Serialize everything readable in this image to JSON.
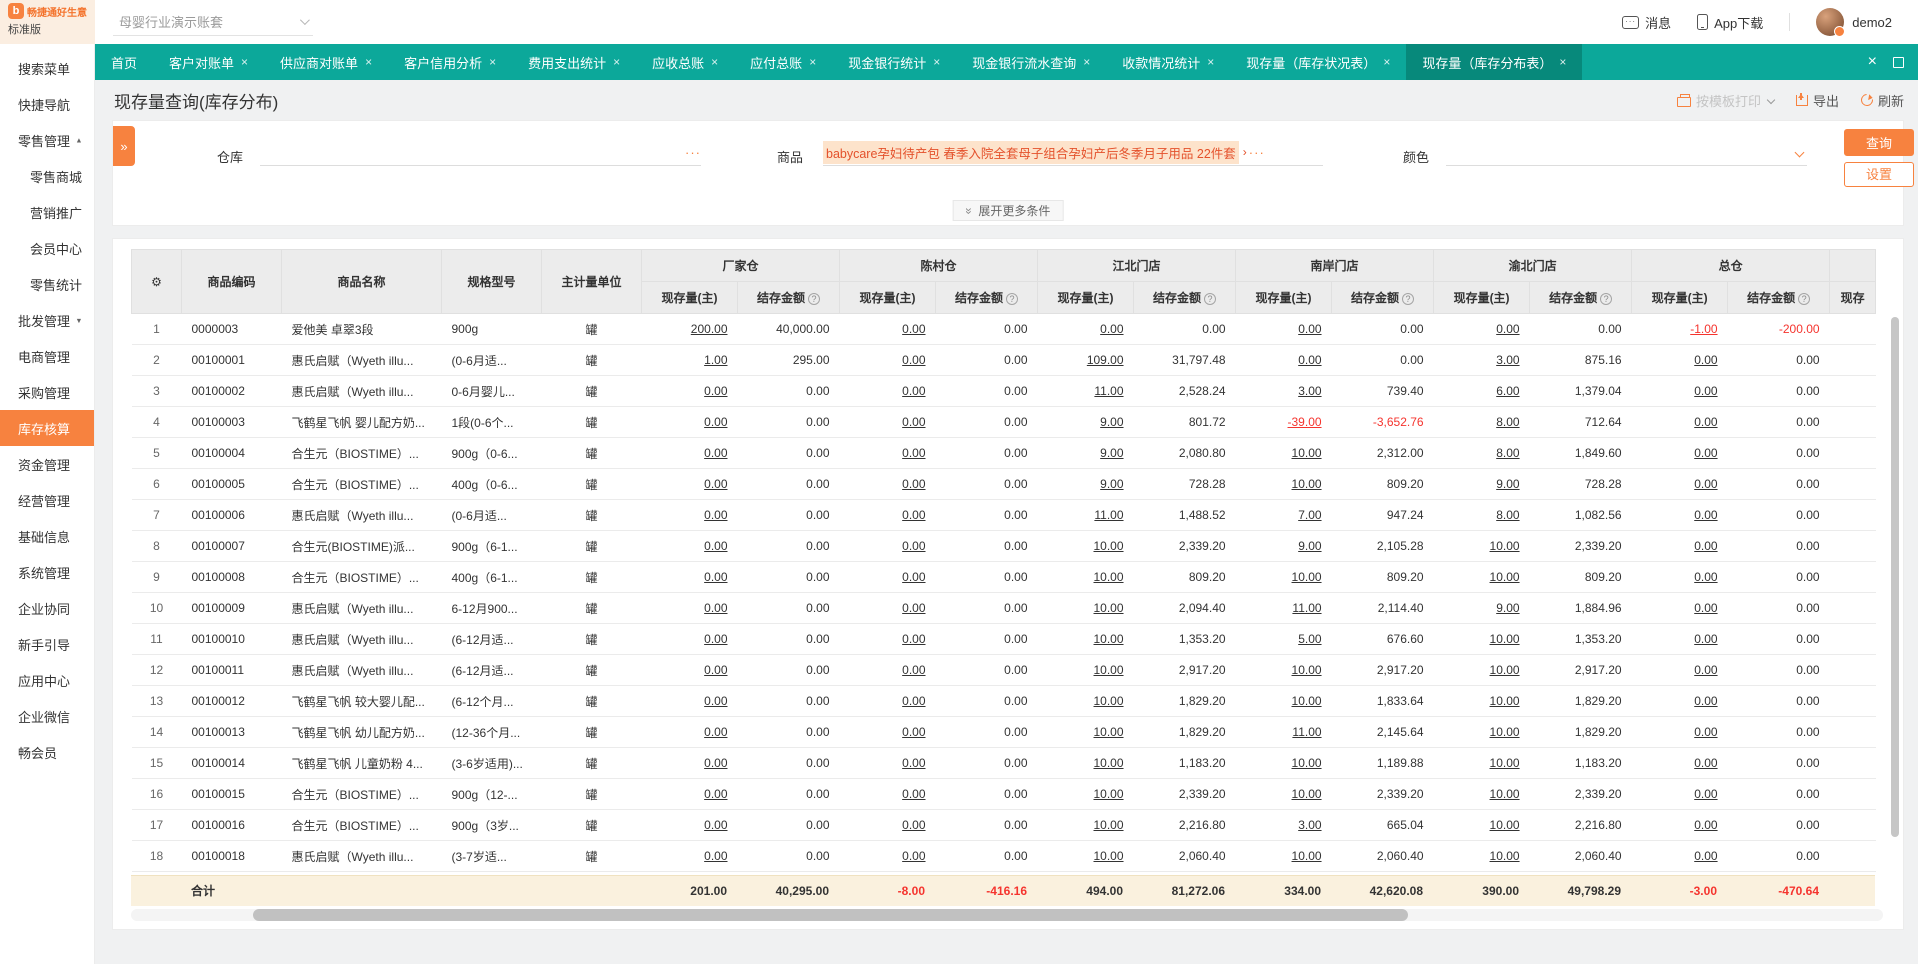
{
  "colors": {
    "accent": "#f7823f",
    "teal": "#0ca89a",
    "teal-active": "#07897b",
    "negative": "#f5342e",
    "totals-bg": "#faf1de",
    "product-bg": "#fde3cb",
    "product-text": "#e4512b"
  },
  "topbar": {
    "logo_title": "畅捷通好生意",
    "logo_subtitle": "标准版",
    "account_select": "母婴行业演示账套",
    "messages_label": "消息",
    "app_download_label": "App下载",
    "username": "demo2"
  },
  "tabs": [
    {
      "label": "首页",
      "closable": false,
      "active": false
    },
    {
      "label": "客户对账单",
      "closable": true,
      "active": false
    },
    {
      "label": "供应商对账单",
      "closable": true,
      "active": false
    },
    {
      "label": "客户信用分析",
      "closable": true,
      "active": false
    },
    {
      "label": "费用支出统计",
      "closable": true,
      "active": false
    },
    {
      "label": "应收总账",
      "closable": true,
      "active": false
    },
    {
      "label": "应付总账",
      "closable": true,
      "active": false
    },
    {
      "label": "现金银行统计",
      "closable": true,
      "active": false
    },
    {
      "label": "现金银行流水查询",
      "closable": true,
      "active": false
    },
    {
      "label": "收款情况统计",
      "closable": true,
      "active": false
    },
    {
      "label": "现存量（库存状况表）",
      "closable": true,
      "active": false
    },
    {
      "label": "现存量（库存分布表）",
      "closable": true,
      "active": true
    }
  ],
  "sidebar": {
    "items": [
      {
        "label": "搜索菜单"
      },
      {
        "label": "快捷导航"
      },
      {
        "label": "零售管理",
        "arrow": "up"
      },
      {
        "label": "零售商城",
        "child": true
      },
      {
        "label": "营销推广",
        "child": true
      },
      {
        "label": "会员中心",
        "child": true
      },
      {
        "label": "零售统计",
        "child": true
      },
      {
        "label": "批发管理",
        "arrow": "down"
      },
      {
        "label": "电商管理"
      },
      {
        "label": "采购管理"
      },
      {
        "label": "库存核算",
        "active": true
      },
      {
        "label": "资金管理"
      },
      {
        "label": "经营管理"
      },
      {
        "label": "基础信息"
      },
      {
        "label": "系统管理"
      },
      {
        "label": "企业协同"
      },
      {
        "label": "新手引导"
      },
      {
        "label": "应用中心"
      },
      {
        "label": "企业微信"
      },
      {
        "label": "畅会员"
      }
    ]
  },
  "page": {
    "title": "现存量查询(库存分布)",
    "print_label": "按模板打印",
    "export_label": "导出",
    "refresh_label": "刷新"
  },
  "filters": {
    "warehouse_label": "仓库",
    "product_label": "商品",
    "product_value": "babycare孕妇待产包 春季入院全套母子组合孕妇产后冬季月子用品 22件套",
    "product_more": "···",
    "warehouse_more": "···",
    "color_label": "颜色",
    "search_button": "查询",
    "settings_button": "设置",
    "expand_more": "展开更多条件"
  },
  "table": {
    "fixed_headers": [
      "商品编码",
      "商品名称",
      "规格型号",
      "主计量单位"
    ],
    "groups": [
      "厂家仓",
      "陈村仓",
      "江北门店",
      "南岸门店",
      "渝北门店",
      "总仓"
    ],
    "qty_header": "现存量(主)",
    "amount_header": "结存金额",
    "partial_header": "现存",
    "rows": [
      {
        "no": "1",
        "code": "0000003",
        "name": "爱他美 卓翠3段",
        "spec": "900g",
        "unit": "罐",
        "values": [
          "200.00",
          "40,000.00",
          "0.00",
          "0.00",
          "0.00",
          "0.00",
          "0.00",
          "0.00",
          "0.00",
          "0.00",
          "-1.00",
          "-200.00"
        ]
      },
      {
        "no": "2",
        "code": "00100001",
        "name": "惠氏启赋（Wyeth illu...",
        "spec": "(0-6月适...",
        "unit": "罐",
        "values": [
          "1.00",
          "295.00",
          "0.00",
          "0.00",
          "109.00",
          "31,797.48",
          "0.00",
          "0.00",
          "3.00",
          "875.16",
          "0.00",
          "0.00"
        ]
      },
      {
        "no": "3",
        "code": "00100002",
        "name": "惠氏启赋（Wyeth illu...",
        "spec": "0-6月婴儿...",
        "unit": "罐",
        "values": [
          "0.00",
          "0.00",
          "0.00",
          "0.00",
          "11.00",
          "2,528.24",
          "3.00",
          "739.40",
          "6.00",
          "1,379.04",
          "0.00",
          "0.00"
        ]
      },
      {
        "no": "4",
        "code": "00100003",
        "name": "飞鹤星飞帆 婴儿配方奶...",
        "spec": "1段(0-6个...",
        "unit": "罐",
        "values": [
          "0.00",
          "0.00",
          "0.00",
          "0.00",
          "9.00",
          "801.72",
          "-39.00",
          "-3,652.76",
          "8.00",
          "712.64",
          "0.00",
          "0.00"
        ]
      },
      {
        "no": "5",
        "code": "00100004",
        "name": "合生元（BIOSTIME）...",
        "spec": "900g（0-6...",
        "unit": "罐",
        "values": [
          "0.00",
          "0.00",
          "0.00",
          "0.00",
          "9.00",
          "2,080.80",
          "10.00",
          "2,312.00",
          "8.00",
          "1,849.60",
          "0.00",
          "0.00"
        ]
      },
      {
        "no": "6",
        "code": "00100005",
        "name": "合生元（BIOSTIME）...",
        "spec": "400g（0-6...",
        "unit": "罐",
        "values": [
          "0.00",
          "0.00",
          "0.00",
          "0.00",
          "9.00",
          "728.28",
          "10.00",
          "809.20",
          "9.00",
          "728.28",
          "0.00",
          "0.00"
        ]
      },
      {
        "no": "7",
        "code": "00100006",
        "name": "惠氏启赋（Wyeth illu...",
        "spec": "(0-6月适...",
        "unit": "罐",
        "values": [
          "0.00",
          "0.00",
          "0.00",
          "0.00",
          "11.00",
          "1,488.52",
          "7.00",
          "947.24",
          "8.00",
          "1,082.56",
          "0.00",
          "0.00"
        ]
      },
      {
        "no": "8",
        "code": "00100007",
        "name": "合生元(BIOSTIME)派...",
        "spec": "900g（6-1...",
        "unit": "罐",
        "values": [
          "0.00",
          "0.00",
          "0.00",
          "0.00",
          "10.00",
          "2,339.20",
          "9.00",
          "2,105.28",
          "10.00",
          "2,339.20",
          "0.00",
          "0.00"
        ]
      },
      {
        "no": "9",
        "code": "00100008",
        "name": "合生元（BIOSTIME）...",
        "spec": "400g（6-1...",
        "unit": "罐",
        "values": [
          "0.00",
          "0.00",
          "0.00",
          "0.00",
          "10.00",
          "809.20",
          "10.00",
          "809.20",
          "10.00",
          "809.20",
          "0.00",
          "0.00"
        ]
      },
      {
        "no": "10",
        "code": "00100009",
        "name": "惠氏启赋（Wyeth illu...",
        "spec": "6-12月900...",
        "unit": "罐",
        "values": [
          "0.00",
          "0.00",
          "0.00",
          "0.00",
          "10.00",
          "2,094.40",
          "11.00",
          "2,114.40",
          "9.00",
          "1,884.96",
          "0.00",
          "0.00"
        ]
      },
      {
        "no": "11",
        "code": "00100010",
        "name": "惠氏启赋（Wyeth illu...",
        "spec": "(6-12月适...",
        "unit": "罐",
        "values": [
          "0.00",
          "0.00",
          "0.00",
          "0.00",
          "10.00",
          "1,353.20",
          "5.00",
          "676.60",
          "10.00",
          "1,353.20",
          "0.00",
          "0.00"
        ]
      },
      {
        "no": "12",
        "code": "00100011",
        "name": "惠氏启赋（Wyeth illu...",
        "spec": "(6-12月适...",
        "unit": "罐",
        "values": [
          "0.00",
          "0.00",
          "0.00",
          "0.00",
          "10.00",
          "2,917.20",
          "10.00",
          "2,917.20",
          "10.00",
          "2,917.20",
          "0.00",
          "0.00"
        ]
      },
      {
        "no": "13",
        "code": "00100012",
        "name": "飞鹤星飞帆 较大婴儿配...",
        "spec": "(6-12个月...",
        "unit": "罐",
        "values": [
          "0.00",
          "0.00",
          "0.00",
          "0.00",
          "10.00",
          "1,829.20",
          "10.00",
          "1,833.64",
          "10.00",
          "1,829.20",
          "0.00",
          "0.00"
        ]
      },
      {
        "no": "14",
        "code": "00100013",
        "name": "飞鹤星飞帆 幼儿配方奶...",
        "spec": "(12-36个月...",
        "unit": "罐",
        "values": [
          "0.00",
          "0.00",
          "0.00",
          "0.00",
          "10.00",
          "1,829.20",
          "11.00",
          "2,145.64",
          "10.00",
          "1,829.20",
          "0.00",
          "0.00"
        ]
      },
      {
        "no": "15",
        "code": "00100014",
        "name": "飞鹤星飞帆 儿童奶粉 4...",
        "spec": "(3-6岁适用)...",
        "unit": "罐",
        "values": [
          "0.00",
          "0.00",
          "0.00",
          "0.00",
          "10.00",
          "1,183.20",
          "10.00",
          "1,189.88",
          "10.00",
          "1,183.20",
          "0.00",
          "0.00"
        ]
      },
      {
        "no": "16",
        "code": "00100015",
        "name": "合生元（BIOSTIME）...",
        "spec": "900g（12-...",
        "unit": "罐",
        "values": [
          "0.00",
          "0.00",
          "0.00",
          "0.00",
          "10.00",
          "2,339.20",
          "10.00",
          "2,339.20",
          "10.00",
          "2,339.20",
          "0.00",
          "0.00"
        ]
      },
      {
        "no": "17",
        "code": "00100016",
        "name": "合生元（BIOSTIME）...",
        "spec": "900g（3岁...",
        "unit": "罐",
        "values": [
          "0.00",
          "0.00",
          "0.00",
          "0.00",
          "10.00",
          "2,216.80",
          "3.00",
          "665.04",
          "10.00",
          "2,216.80",
          "0.00",
          "0.00"
        ]
      },
      {
        "no": "18",
        "code": "00100018",
        "name": "惠氏启赋（Wyeth illu...",
        "spec": "(3-7岁适...",
        "unit": "罐",
        "values": [
          "0.00",
          "0.00",
          "0.00",
          "0.00",
          "10.00",
          "2,060.40",
          "10.00",
          "2,060.40",
          "10.00",
          "2,060.40",
          "0.00",
          "0.00"
        ]
      }
    ],
    "total_label": "合计",
    "totals": [
      "201.00",
      "40,295.00",
      "-8.00",
      "-416.16",
      "494.00",
      "81,272.06",
      "334.00",
      "42,620.08",
      "390.00",
      "49,798.29",
      "-3.00",
      "-470.64"
    ]
  }
}
